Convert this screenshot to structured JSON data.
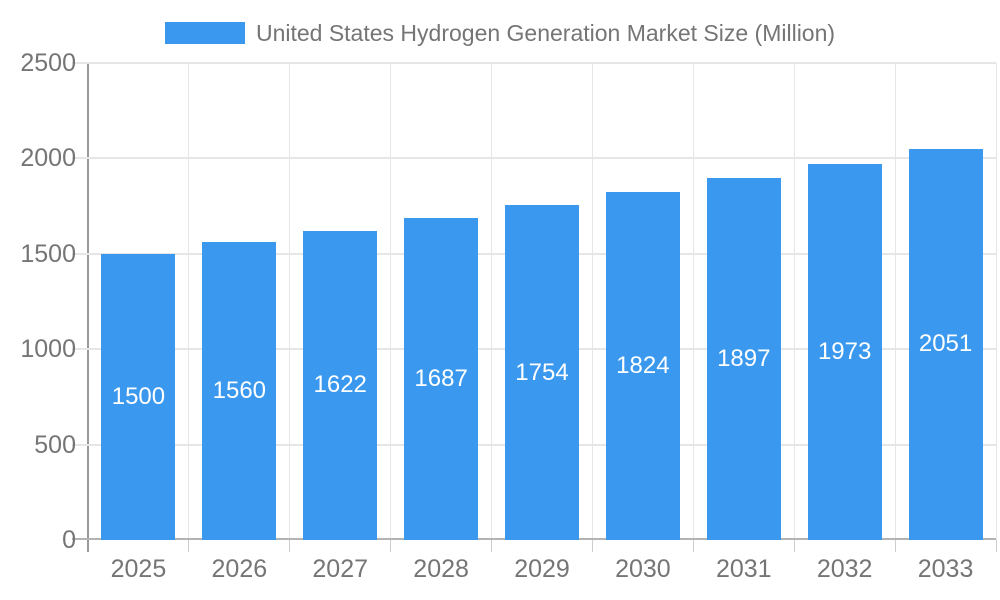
{
  "legend": {
    "label": "United States Hydrogen Generation Market Size (Million)"
  },
  "chart_data": {
    "type": "bar",
    "title": "United States Hydrogen Generation Market Size (Million)",
    "categories": [
      "2025",
      "2026",
      "2027",
      "2028",
      "2029",
      "2030",
      "2031",
      "2032",
      "2033"
    ],
    "series": [
      {
        "name": "United States Hydrogen Generation Market Size (Million)",
        "values": [
          1500,
          1560,
          1622,
          1687,
          1754,
          1824,
          1897,
          1973,
          2051
        ]
      }
    ],
    "value_labels": [
      "1500",
      "1560",
      "1622",
      "1687",
      "1754",
      "1824",
      "1897",
      "1973",
      "2051"
    ],
    "xlabel": "",
    "ylabel": "",
    "ylim": [
      0,
      2500
    ],
    "y_ticks": [
      0,
      500,
      1000,
      1500,
      2000,
      2500
    ],
    "grid": "on",
    "legend_position": "top-center",
    "colors": {
      "bar": "#3A99EE",
      "bar_value_text": "#FFFFFF",
      "axis_text": "#757575",
      "gridline": "#E6E6E6",
      "y_axis_line": "#999999",
      "baseline": "#B3B3B3",
      "x_tick": "#CCCCCC",
      "background": "#FFFFFF"
    }
  }
}
